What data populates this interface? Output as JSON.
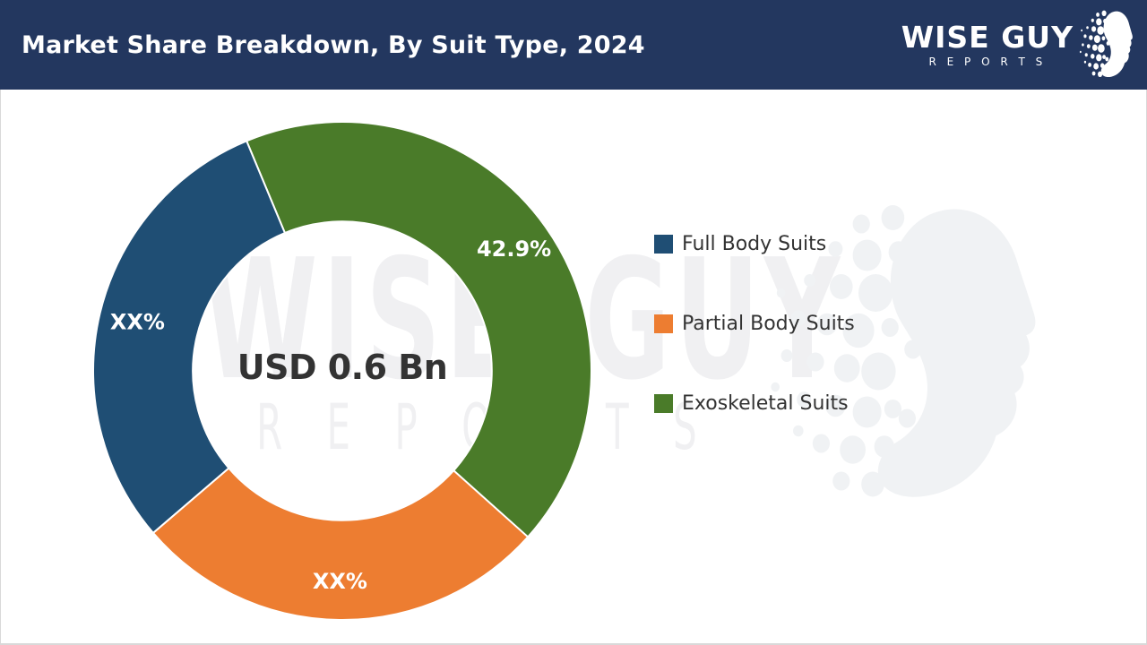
{
  "header": {
    "title": "Market Share Breakdown, By Suit Type, 2024",
    "logo": {
      "name": "WISE GUY",
      "tagline": "R E P O R T S"
    },
    "bg_color": "#23375f"
  },
  "watermark": {
    "line1": "WISE GUY",
    "line2": "R E P O R T S"
  },
  "legend": [
    {
      "label": "Full Body Suits",
      "color": "#1f4e74"
    },
    {
      "label": "Partial Body Suits",
      "color": "#ed7d31"
    },
    {
      "label": "Exoskeletal Suits",
      "color": "#4a7b29"
    }
  ],
  "chart_data": {
    "type": "pie",
    "subtype": "donut",
    "title": "Market Share Breakdown, By Suit Type, 2024",
    "center_text": "USD 0.6 Bn",
    "start_angle_deg": -22.6,
    "inner_radius_ratio": 0.6,
    "legend_position": "right",
    "slices": [
      {
        "name": "Exoskeletal Suits",
        "value_pct": 42.9,
        "display_label": "42.9%",
        "color": "#4a7b29"
      },
      {
        "name": "Partial Body Suits",
        "value_pct": 27.1,
        "display_label": "XX%",
        "color": "#ed7d31"
      },
      {
        "name": "Full Body Suits",
        "value_pct": 30.0,
        "display_label": "XX%",
        "color": "#1f4e74"
      }
    ]
  }
}
